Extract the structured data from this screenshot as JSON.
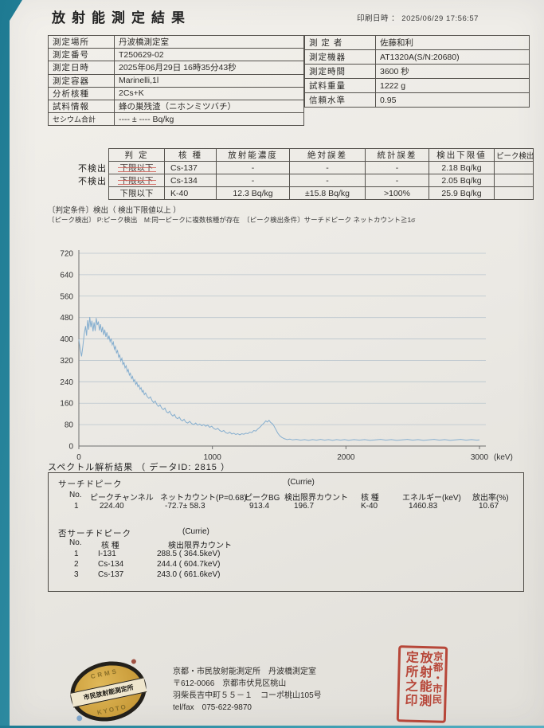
{
  "header": {
    "title": "放射能測定結果",
    "print_label": "印刷日時 ：",
    "print_value": "2025/06/29 17:56:57"
  },
  "info_left": {
    "rows": [
      {
        "label": "測定場所",
        "value": "丹波橋測定室"
      },
      {
        "label": "測定番号",
        "value": "T250629-02"
      },
      {
        "label": "測定日時",
        "value": "2025年06月29日 16時35分43秒"
      },
      {
        "label": "測定容器",
        "value": "Marinelli,1l"
      },
      {
        "label": "分析核種",
        "value": "2Cs+K"
      },
      {
        "label": "試料情報",
        "value": "蜂の巣残渣（ニホンミツバチ）"
      },
      {
        "label": "セシウム合計",
        "value": "---- ± ---- Bq/kg"
      }
    ]
  },
  "info_right": {
    "rows": [
      {
        "label": "測 定 者",
        "value": "佐藤和利"
      },
      {
        "label": "測定機器",
        "value": "AT1320A(S/N:20680)"
      },
      {
        "label": "測定時間",
        "value": "3600 秒"
      },
      {
        "label": "試料重量",
        "value": "1222 g"
      },
      {
        "label": "信頼水準",
        "value": "0.95"
      }
    ]
  },
  "results": {
    "outside_labels": [
      "不検出",
      "不検出"
    ],
    "headers": [
      "判 定",
      "核 種",
      "放射能濃度",
      "絶対誤差",
      "統計誤差",
      "検出下限値",
      "ピーク検出"
    ],
    "rows": [
      {
        "judgement": "下限以下",
        "nuclide": "Cs-137",
        "concentration": "-",
        "abs_err": "-",
        "stat_err": "-",
        "limit": "2.18 Bq/kg",
        "peak": ""
      },
      {
        "judgement": "下限以下",
        "nuclide": "Cs-134",
        "concentration": "-",
        "abs_err": "-",
        "stat_err": "-",
        "limit": "2.05 Bq/kg",
        "peak": ""
      },
      {
        "judgement": "下限以下",
        "nuclide": "K-40",
        "concentration": "12.3 Bq/kg",
        "abs_err": "±15.8 Bq/kg",
        "stat_err": ">100%",
        "limit": "25.9 Bq/kg",
        "peak": ""
      }
    ]
  },
  "notes": {
    "line1": "〔判定条件〕検出（ 検出下限値以上 ）",
    "line2": "〔ピーク検出〕 P:ピーク検出　M:同一ピークに複数核種が存在　〔ピーク検出条件〕サーチドピーク ネットカウント≧1σ"
  },
  "chart_data": {
    "type": "line",
    "title": "",
    "xlabel": "(keV)",
    "ylabel": "",
    "xlim": [
      0,
      3000
    ],
    "ylim": [
      0,
      720
    ],
    "x_ticks": [
      0,
      1000,
      2000,
      3000
    ],
    "y_ticks": [
      0,
      80,
      160,
      240,
      320,
      400,
      480,
      560,
      640,
      720
    ],
    "grid": true,
    "legend": "none",
    "series": [
      {
        "name": "gamma-spectrum",
        "color": "#85aecf",
        "points": [
          [
            0,
            398
          ],
          [
            10,
            362
          ],
          [
            20,
            335
          ],
          [
            30,
            372
          ],
          [
            40,
            418
          ],
          [
            50,
            448
          ],
          [
            58,
            412
          ],
          [
            66,
            470
          ],
          [
            74,
            435
          ],
          [
            82,
            482
          ],
          [
            90,
            444
          ],
          [
            98,
            468
          ],
          [
            106,
            428
          ],
          [
            114,
            462
          ],
          [
            122,
            430
          ],
          [
            130,
            478
          ],
          [
            138,
            452
          ],
          [
            146,
            465
          ],
          [
            154,
            432
          ],
          [
            162,
            455
          ],
          [
            170,
            425
          ],
          [
            178,
            445
          ],
          [
            186,
            415
          ],
          [
            194,
            435
          ],
          [
            202,
            408
          ],
          [
            210,
            425
          ],
          [
            218,
            398
          ],
          [
            226,
            412
          ],
          [
            234,
            390
          ],
          [
            242,
            402
          ],
          [
            250,
            378
          ],
          [
            258,
            388
          ],
          [
            266,
            362
          ],
          [
            274,
            372
          ],
          [
            282,
            348
          ],
          [
            290,
            356
          ],
          [
            298,
            332
          ],
          [
            306,
            340
          ],
          [
            314,
            318
          ],
          [
            322,
            328
          ],
          [
            330,
            305
          ],
          [
            338,
            312
          ],
          [
            346,
            292
          ],
          [
            354,
            300
          ],
          [
            362,
            278
          ],
          [
            370,
            286
          ],
          [
            378,
            265
          ],
          [
            386,
            272
          ],
          [
            394,
            252
          ],
          [
            402,
            260
          ],
          [
            410,
            242
          ],
          [
            418,
            248
          ],
          [
            426,
            230
          ],
          [
            434,
            238
          ],
          [
            442,
            222
          ],
          [
            450,
            228
          ],
          [
            458,
            212
          ],
          [
            466,
            218
          ],
          [
            474,
            202
          ],
          [
            482,
            208
          ],
          [
            490,
            192
          ],
          [
            500,
            198
          ],
          [
            512,
            185
          ],
          [
            524,
            178
          ],
          [
            536,
            184
          ],
          [
            548,
            170
          ],
          [
            560,
            162
          ],
          [
            572,
            168
          ],
          [
            584,
            155
          ],
          [
            596,
            148
          ],
          [
            608,
            154
          ],
          [
            620,
            142
          ],
          [
            632,
            136
          ],
          [
            644,
            142
          ],
          [
            656,
            128
          ],
          [
            668,
            124
          ],
          [
            680,
            130
          ],
          [
            692,
            118
          ],
          [
            704,
            112
          ],
          [
            716,
            118
          ],
          [
            728,
            106
          ],
          [
            740,
            102
          ],
          [
            752,
            108
          ],
          [
            764,
            98
          ],
          [
            776,
            94
          ],
          [
            788,
            100
          ],
          [
            800,
            90
          ],
          [
            815,
            86
          ],
          [
            830,
            92
          ],
          [
            845,
            84
          ],
          [
            860,
            80
          ],
          [
            875,
            86
          ],
          [
            890,
            78
          ],
          [
            905,
            82
          ],
          [
            920,
            76
          ],
          [
            935,
            80
          ],
          [
            950,
            74
          ],
          [
            965,
            78
          ],
          [
            980,
            70
          ],
          [
            995,
            74
          ],
          [
            1010,
            66
          ],
          [
            1025,
            62
          ],
          [
            1040,
            66
          ],
          [
            1055,
            58
          ],
          [
            1070,
            54
          ],
          [
            1085,
            58
          ],
          [
            1100,
            50
          ],
          [
            1115,
            47
          ],
          [
            1130,
            52
          ],
          [
            1145,
            45
          ],
          [
            1160,
            48
          ],
          [
            1175,
            43
          ],
          [
            1190,
            46
          ],
          [
            1205,
            42
          ],
          [
            1220,
            46
          ],
          [
            1235,
            44
          ],
          [
            1250,
            48
          ],
          [
            1265,
            46
          ],
          [
            1280,
            52
          ],
          [
            1295,
            50
          ],
          [
            1310,
            58
          ],
          [
            1325,
            56
          ],
          [
            1340,
            64
          ],
          [
            1355,
            70
          ],
          [
            1370,
            78
          ],
          [
            1385,
            85
          ],
          [
            1400,
            94
          ],
          [
            1412,
            90
          ],
          [
            1424,
            96
          ],
          [
            1436,
            88
          ],
          [
            1448,
            84
          ],
          [
            1460,
            76
          ],
          [
            1475,
            62
          ],
          [
            1490,
            48
          ],
          [
            1505,
            38
          ],
          [
            1520,
            32
          ],
          [
            1540,
            27
          ],
          [
            1560,
            24
          ],
          [
            1580,
            26
          ],
          [
            1600,
            23
          ],
          [
            1630,
            25
          ],
          [
            1660,
            22
          ],
          [
            1690,
            24
          ],
          [
            1720,
            21
          ],
          [
            1750,
            24
          ],
          [
            1780,
            22
          ],
          [
            1810,
            25
          ],
          [
            1840,
            22
          ],
          [
            1870,
            24
          ],
          [
            1900,
            21
          ],
          [
            1930,
            24
          ],
          [
            1960,
            22
          ],
          [
            1990,
            24
          ],
          [
            2020,
            21
          ],
          [
            2060,
            24
          ],
          [
            2100,
            22
          ],
          [
            2140,
            24
          ],
          [
            2180,
            21
          ],
          [
            2220,
            23
          ],
          [
            2260,
            25
          ],
          [
            2300,
            22
          ],
          [
            2340,
            24
          ],
          [
            2380,
            21
          ],
          [
            2420,
            23
          ],
          [
            2460,
            25
          ],
          [
            2500,
            22
          ],
          [
            2540,
            24
          ],
          [
            2580,
            21
          ],
          [
            2620,
            23
          ],
          [
            2660,
            25
          ],
          [
            2700,
            22
          ],
          [
            2740,
            24
          ],
          [
            2780,
            21
          ],
          [
            2820,
            23
          ],
          [
            2860,
            25
          ],
          [
            2900,
            22
          ],
          [
            2940,
            24
          ],
          [
            2980,
            22
          ],
          [
            3000,
            23
          ]
        ]
      }
    ]
  },
  "analysis": {
    "title": "スペクトル解析結果 （ データID: 2815 ）",
    "searched": {
      "label": "サーチドピーク",
      "currie": "(Currie)",
      "headers": [
        "No.",
        "ピークチャンネル",
        "ネットカウント(P=0.68)",
        "ピークBG",
        "検出限界カウント",
        "核 種",
        "エネルギー(keV)",
        "放出率(%)"
      ],
      "row": [
        "1",
        "224.40",
        "-72.7± 58.3",
        "913.4",
        "196.7",
        "K-40",
        "1460.83",
        "10.67"
      ]
    },
    "unsearched": {
      "label": "否サーチドピーク",
      "currie": "(Currie)",
      "headers": [
        "No.",
        "核 種",
        "検出限界カウント"
      ],
      "rows": [
        [
          "1",
          "I-131",
          "288.5 ( 364.5keV)"
        ],
        [
          "2",
          "Cs-134",
          "244.4 ( 604.7keV)"
        ],
        [
          "3",
          "Cs-137",
          "243.0 ( 661.6keV)"
        ]
      ]
    }
  },
  "footer": {
    "lines": [
      "京都・市民放射能測定所　丹波橋測定室",
      "〒612-0066　京都市伏見区桃山",
      "羽柴長吉中町５５－１　コーポ桃山105号",
      "tel/fax　075-622-9870"
    ]
  },
  "stamps": {
    "oval": {
      "top_text": "CRMS",
      "band_text": "市民放射能測定所",
      "bottom_text": "KYOTO"
    },
    "red_seal": {
      "columns": [
        "京都・市民",
        "放射能測",
        "定所之印"
      ]
    }
  },
  "colors": {
    "background_teal": "#3d9cb0",
    "paper": "#ebe9e4",
    "seal_red": "#b43a2c",
    "strike_red": "#d06058",
    "chart_line": "#85aecf",
    "chart_grid": "#b9c5cd",
    "sticker_gold": "#c89a38"
  }
}
